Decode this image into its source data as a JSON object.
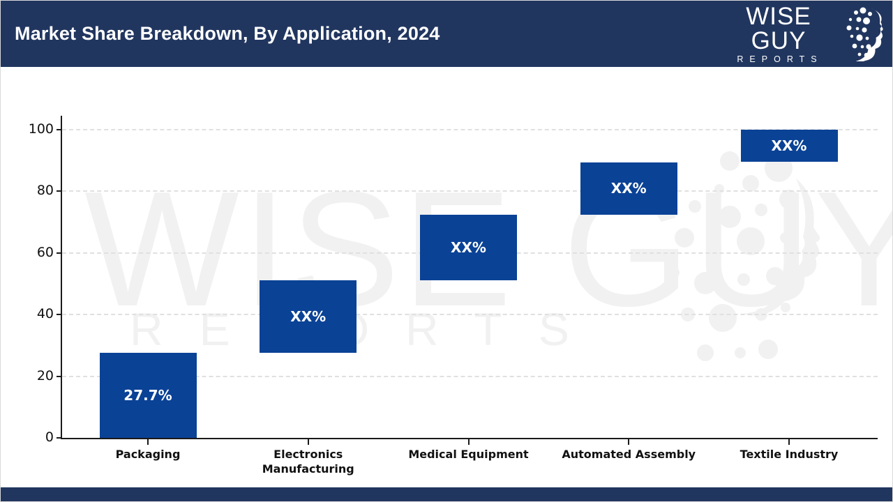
{
  "header": {
    "title": "Market Share Breakdown, By Application, 2024",
    "logo": {
      "wordmark": "WISE GUY",
      "subtitle": "REPORTS"
    }
  },
  "watermark": {
    "wordmark": "WISE GUY",
    "subtitle": "REPORTS"
  },
  "chart_data": {
    "type": "bar",
    "subtype": "waterfall",
    "title": "Market Share Breakdown, By Application, 2024",
    "categories": [
      "Packaging",
      "Electronics Manufacturing",
      "Medical Equipment",
      "Automated Assembly",
      "Textile Industry"
    ],
    "segments": [
      {
        "category": "Packaging",
        "start": 0,
        "end": 27.7,
        "label": "27.7%"
      },
      {
        "category": "Electronics Manufacturing",
        "start": 27.7,
        "end": 51.2,
        "label": "XX%"
      },
      {
        "category": "Medical Equipment",
        "start": 51.2,
        "end": 72.4,
        "label": "XX%"
      },
      {
        "category": "Automated Assembly",
        "start": 72.4,
        "end": 89.4,
        "label": "XX%"
      },
      {
        "category": "Textile Industry",
        "start": 89.5,
        "end": 100,
        "label": "XX%"
      }
    ],
    "ylim": [
      0,
      100
    ],
    "yticks": [
      0,
      20,
      40,
      60,
      80,
      100
    ],
    "xlabel": "",
    "ylabel": "",
    "grid": "horizontal-dashed",
    "legend": "none",
    "colors": {
      "bar": "#0a4296",
      "bar_label": "#ffffff",
      "axis": "#1a1a1a",
      "gridline": "#e0e0e0",
      "band_bg": "#21365f",
      "watermark": "#f1f1f1"
    }
  }
}
